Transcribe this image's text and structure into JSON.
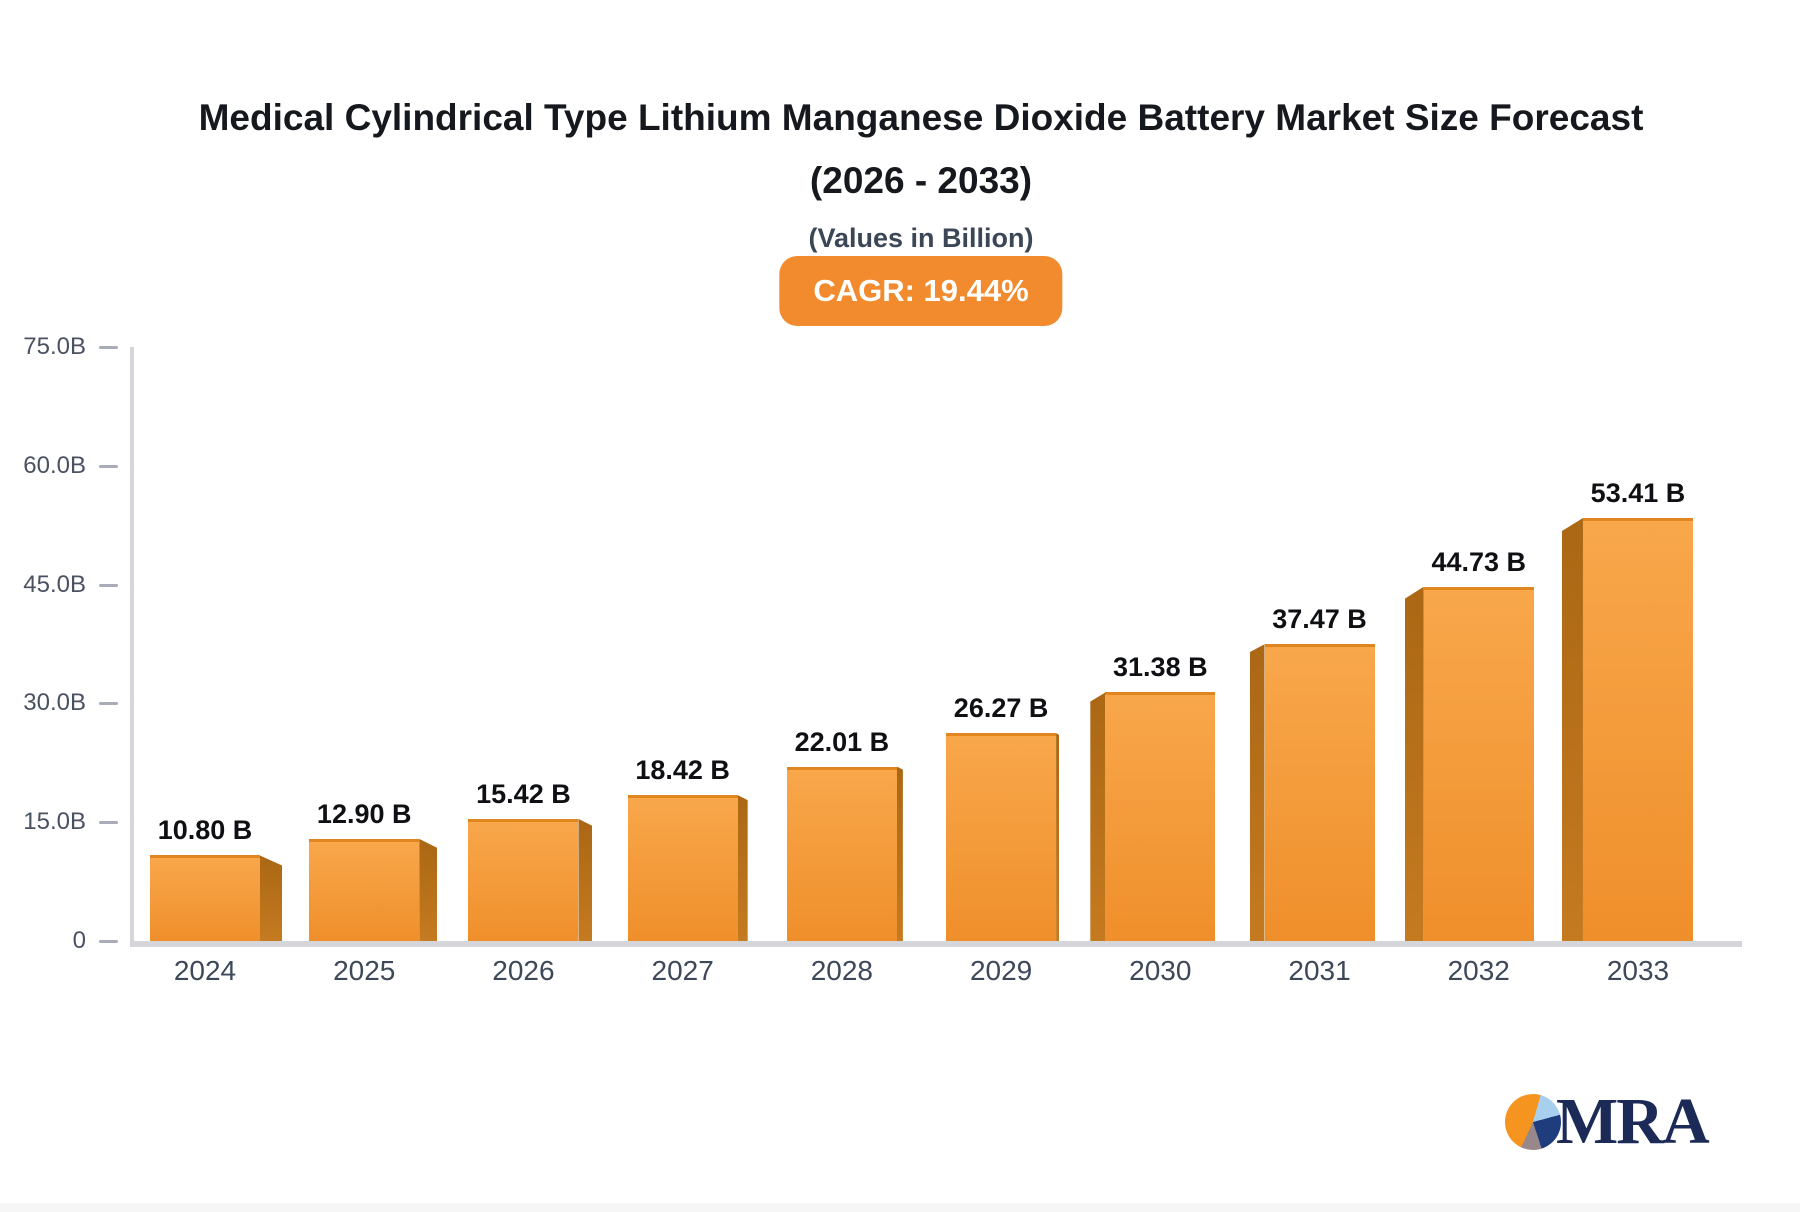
{
  "header": {
    "title_line1": "Medical Cylindrical Type Lithium Manganese Dioxide Battery Market Size Forecast",
    "title_line2": "(2026 - 2033)",
    "subtitle": "(Values in Billion)",
    "cagr_badge": "CAGR: 19.44%"
  },
  "chart_data": {
    "type": "bar",
    "title": "Medical Cylindrical Type Lithium Manganese Dioxide Battery Market Size Forecast (2026 - 2033)",
    "subtitle": "(Values in Billion)",
    "cagr": "19.44%",
    "categories": [
      "2024",
      "2025",
      "2026",
      "2027",
      "2028",
      "2029",
      "2030",
      "2031",
      "2032",
      "2033"
    ],
    "values": [
      10.8,
      12.9,
      15.42,
      18.42,
      22.01,
      26.27,
      31.38,
      37.47,
      44.73,
      53.41
    ],
    "value_labels": [
      "10.80 B",
      "12.90 B",
      "15.42 B",
      "18.42 B",
      "22.01 B",
      "26.27 B",
      "31.38 B",
      "37.47 B",
      "44.73 B",
      "53.41 B"
    ],
    "xlabel": "",
    "ylabel": "",
    "ylim": [
      0,
      75
    ],
    "yticks": {
      "values": [
        0,
        15,
        30,
        45,
        60,
        75
      ],
      "labels": [
        "0",
        "15.0B",
        "30.0B",
        "45.0B",
        "60.0B",
        "75.0B"
      ]
    },
    "grid": false,
    "legend": "none",
    "bar_style": "pseudo-3d",
    "style": {
      "bar_front_top": "#f8a74b",
      "bar_front_bottom": "#ef8f2b",
      "bar_top_edge": "#e0851f",
      "bar_side_dark": "#ab6714",
      "bar_side_light": "#c47a20",
      "badge_bg": "#f28b2d",
      "badge_text": "#ffffff",
      "axis_color": "#d5d6da",
      "tick_dash_color": "#a7acb6",
      "tick_label_color": "#4a5262",
      "x_label_color": "#3d4859",
      "value_label_color": "#0e1013",
      "title_color": "#15181d",
      "subtitle_color": "#3b4657"
    }
  },
  "branding": {
    "logo_text": "MRA",
    "logo_text_color": "#1b2a57",
    "logo_pie_colors": [
      "#f5941f",
      "#a8cfee",
      "#1f3c7d",
      "#98878b"
    ]
  }
}
